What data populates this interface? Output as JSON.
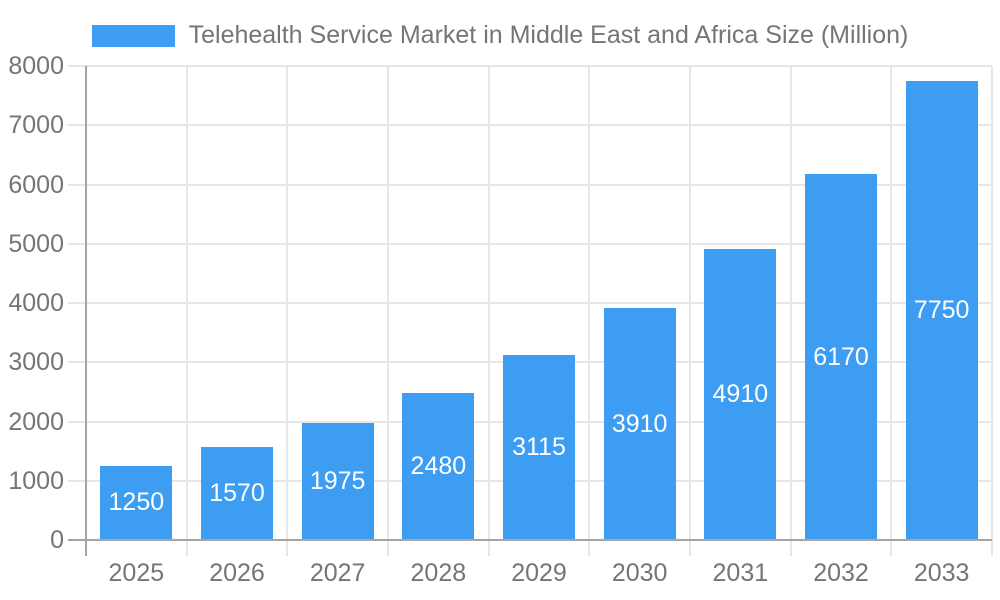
{
  "chart_data": {
    "type": "bar",
    "title": "Telehealth Service Market in Middle East and Africa Size (Million)",
    "legend": {
      "position": "top",
      "label": "Telehealth Service Market in Middle East and Africa Size (Million)"
    },
    "categories": [
      "2025",
      "2026",
      "2027",
      "2028",
      "2029",
      "2030",
      "2031",
      "2032",
      "2033"
    ],
    "series": [
      {
        "name": "Telehealth Service Market in Middle East and Africa Size (Million)",
        "values": [
          1250,
          1570,
          1975,
          2480,
          3115,
          3910,
          4910,
          6170,
          7750
        ]
      }
    ],
    "bar_value_labels": [
      1250,
      1570,
      1975,
      2480,
      3115,
      3910,
      4910,
      6170,
      7750
    ],
    "xlabel": "",
    "ylabel": "",
    "ylim": [
      0,
      8000
    ],
    "yticks": [
      0,
      1000,
      2000,
      3000,
      4000,
      5000,
      6000,
      7000,
      8000
    ],
    "grid": true,
    "value_label_position": "inside-center",
    "colors": {
      "bar": "#3d9df3",
      "bar_label": "#ffffff",
      "axis_text": "#757575",
      "grid_line": "#e6e6e6",
      "axis_line": "#a5a5a5",
      "background": "#ffffff"
    }
  }
}
